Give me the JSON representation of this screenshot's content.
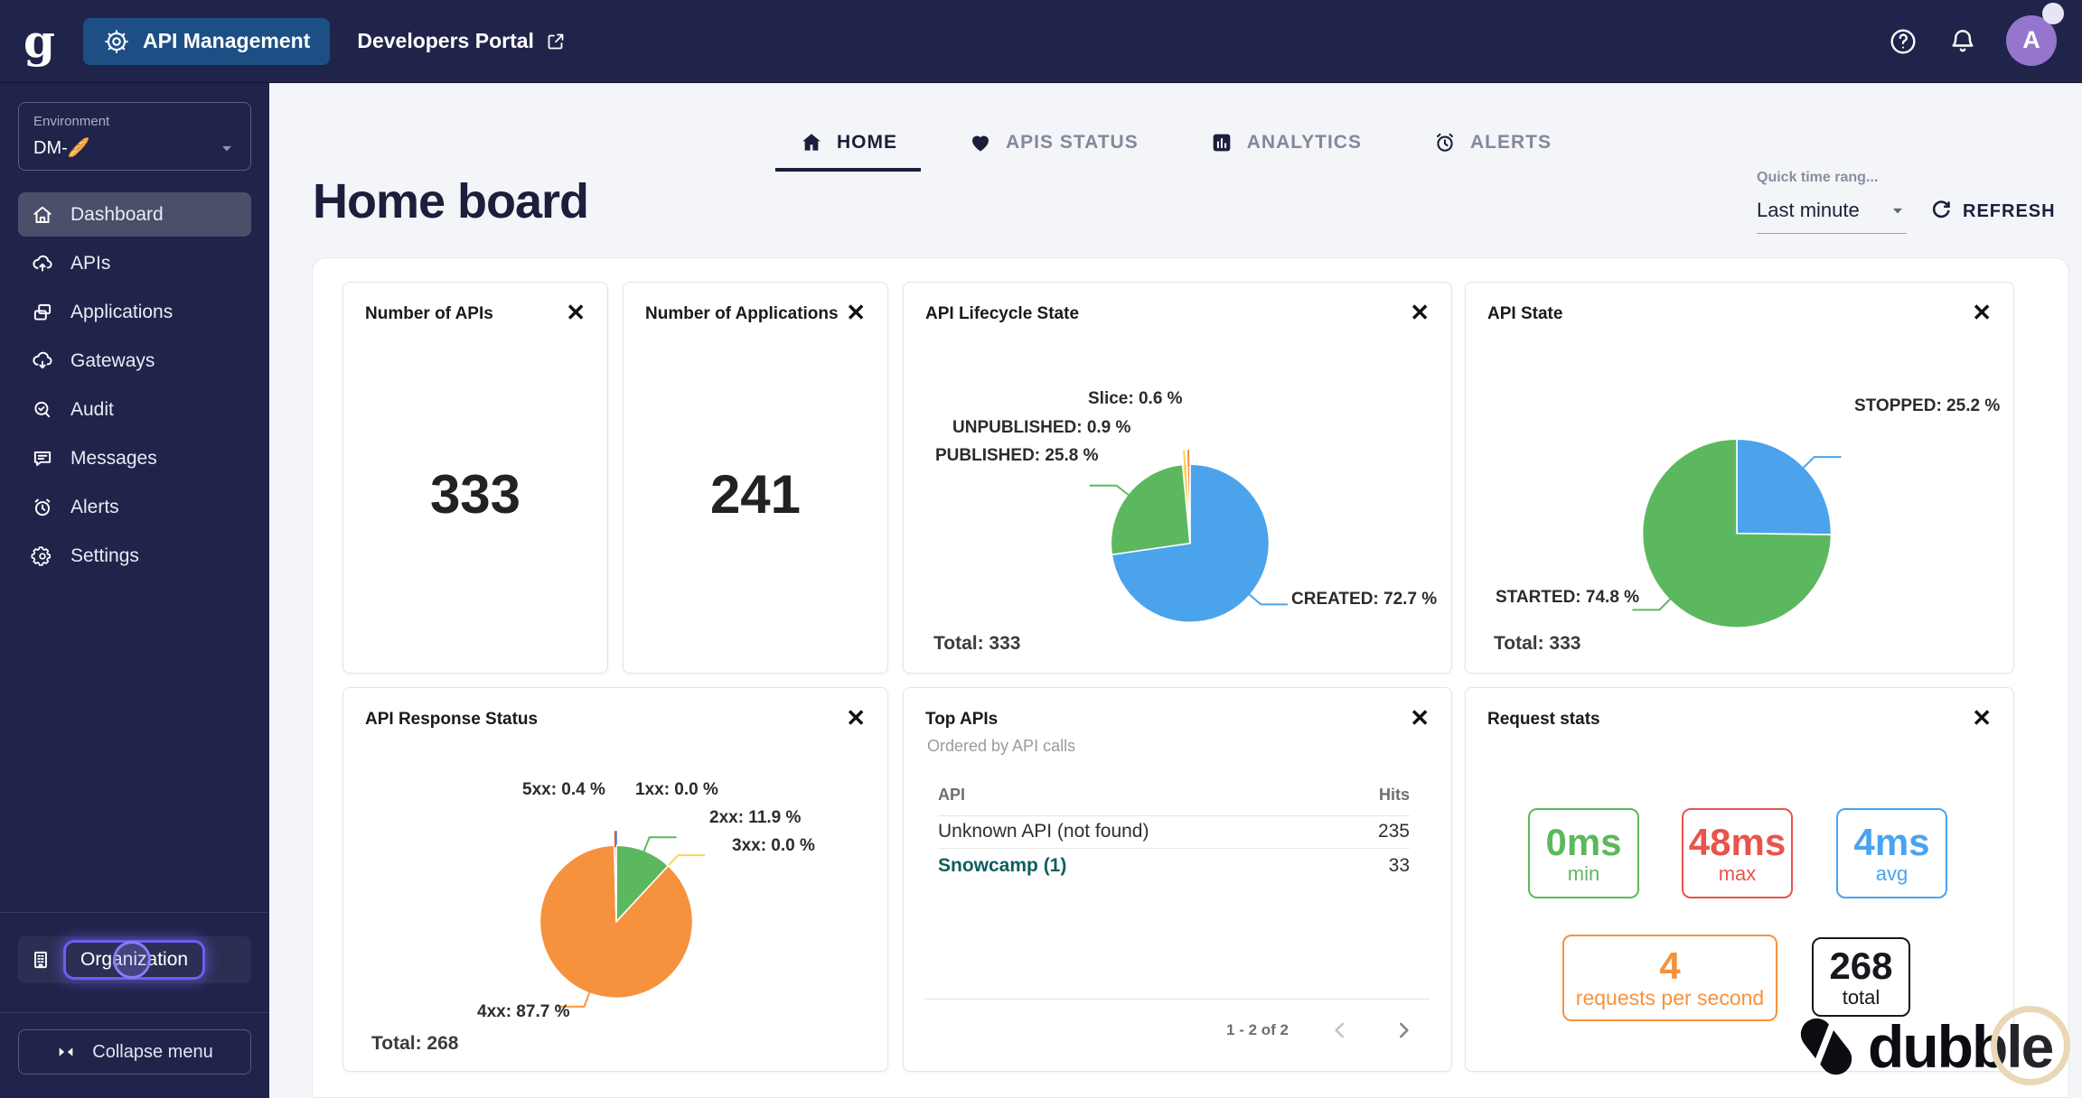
{
  "topbar": {
    "logo": "g",
    "app_name": "API Management",
    "portal_name": "Developers Portal",
    "avatar_initial": "A"
  },
  "sidebar": {
    "environment": {
      "label": "Environment",
      "value": "DM-🥖"
    },
    "items": [
      {
        "label": "Dashboard",
        "icon": "home-icon"
      },
      {
        "label": "APIs",
        "icon": "cloud-upload-icon"
      },
      {
        "label": "Applications",
        "icon": "copies-icon"
      },
      {
        "label": "Gateways",
        "icon": "cloud-download-icon"
      },
      {
        "label": "Audit",
        "icon": "search-check-icon"
      },
      {
        "label": "Messages",
        "icon": "chat-icon"
      },
      {
        "label": "Alerts",
        "icon": "alarm-icon"
      },
      {
        "label": "Settings",
        "icon": "gear-icon"
      }
    ],
    "organization": {
      "label": "Organization"
    },
    "collapse": {
      "label": "Collapse menu"
    }
  },
  "header": {
    "title": "Home board",
    "tabs": [
      {
        "label": "HOME"
      },
      {
        "label": "APIS STATUS"
      },
      {
        "label": "ANALYTICS"
      },
      {
        "label": "ALERTS"
      }
    ],
    "quick_time": {
      "label": "Quick time rang...",
      "value": "Last minute"
    },
    "refresh_label": "REFRESH"
  },
  "cards": {
    "number_of_apis": {
      "title": "Number of APIs",
      "value": "333"
    },
    "number_of_applications": {
      "title": "Number of Applications",
      "value": "241"
    },
    "api_lifecycle_state": {
      "title": "API Lifecycle State",
      "total": "Total: 333"
    },
    "api_state": {
      "title": "API State",
      "total": "Total: 333"
    },
    "api_response_status": {
      "title": "API Response Status",
      "total": "Total: 268"
    },
    "top_apis": {
      "title": "Top APIs",
      "subtitle": "Ordered by API calls",
      "col_api": "API",
      "col_hits": "Hits",
      "rows": [
        {
          "api": "Unknown API (not found)",
          "hits": "235"
        },
        {
          "api": "Snowcamp (1)",
          "hits": "33"
        }
      ],
      "pagination": "1 - 2 of 2"
    },
    "request_stats": {
      "title": "Request stats",
      "min": {
        "value": "0ms",
        "label": "min",
        "color": "#5cb85c"
      },
      "max": {
        "value": "48ms",
        "label": "max",
        "color": "#e8544c"
      },
      "avg": {
        "value": "4ms",
        "label": "avg",
        "color": "#4aa3f0"
      },
      "rps": {
        "value": "4",
        "label": "requests per second",
        "color": "#f5923e"
      },
      "total": {
        "value": "268",
        "label": "total",
        "color": "#16181d"
      }
    }
  },
  "chart_data": [
    {
      "type": "pie",
      "title": "API Lifecycle State",
      "total": 333,
      "total_label": "Total: 333",
      "slices": [
        {
          "name": "CREATED",
          "pct": 72.7,
          "color": "#4ba3ec",
          "label": "CREATED: 72.7 %"
        },
        {
          "name": "PUBLISHED",
          "pct": 25.8,
          "color": "#5cb85f",
          "label": "PUBLISHED: 25.8 %"
        },
        {
          "name": "UNPUBLISHED",
          "pct": 0.9,
          "color": "#f9d45c",
          "label": "UNPUBLISHED: 0.9 %"
        },
        {
          "name": "Slice",
          "pct": 0.6,
          "color": "#f6913e",
          "label": "Slice: 0.6 %"
        }
      ]
    },
    {
      "type": "pie",
      "title": "API State",
      "total": 333,
      "total_label": "Total: 333",
      "slices": [
        {
          "name": "STOPPED",
          "pct": 25.2,
          "color": "#4ba3ec",
          "label": "STOPPED: 25.2 %"
        },
        {
          "name": "STARTED",
          "pct": 74.8,
          "color": "#5cb85f",
          "label": "STARTED: 74.8 %"
        }
      ]
    },
    {
      "type": "pie",
      "title": "API Response Status",
      "total": 268,
      "total_label": "Total: 268",
      "slices": [
        {
          "name": "1xx",
          "pct": 0.0,
          "color": "#4ba3ec",
          "label": "1xx: 0.0 %"
        },
        {
          "name": "2xx",
          "pct": 11.9,
          "color": "#5cb85f",
          "label": "2xx: 11.9 %"
        },
        {
          "name": "3xx",
          "pct": 0.0,
          "color": "#f9d45c",
          "label": "3xx: 0.0 %"
        },
        {
          "name": "4xx",
          "pct": 87.7,
          "color": "#f6913e",
          "label": "4xx: 87.7 %"
        },
        {
          "name": "5xx",
          "pct": 0.4,
          "color": "#e4544e",
          "label": "5xx: 0.4 %"
        }
      ]
    }
  ],
  "watermark": {
    "text": "dubble"
  }
}
